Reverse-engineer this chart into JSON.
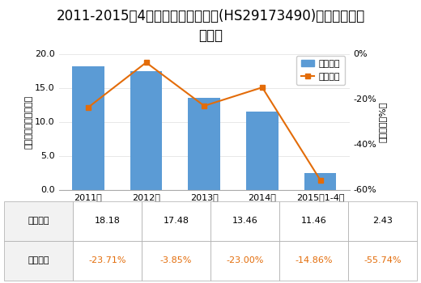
{
  "title": "2011-2015年4月其他邻苯二甲酸酯(HS29173490)进口总额及增\n速统计",
  "categories": [
    "2011年",
    "2012年",
    "2013年",
    "2014年",
    "2015年1-4月"
  ],
  "bar_values": [
    18.18,
    17.48,
    13.46,
    11.46,
    2.43
  ],
  "line_values": [
    -23.71,
    -3.85,
    -23.0,
    -14.86,
    -55.74
  ],
  "bar_color": "#5B9BD5",
  "line_color": "#E36C09",
  "ylabel_left": "进口金额（百万美元）",
  "ylabel_right": "同比增长（%）",
  "ylim_left": [
    0,
    20.0
  ],
  "ylim_right": [
    -60,
    0
  ],
  "yticks_left": [
    0.0,
    5.0,
    10.0,
    15.0,
    20.0
  ],
  "yticks_right": [
    -60,
    -40,
    -20,
    0
  ],
  "ytick_labels_right": [
    "-60%",
    "-40%",
    "-20%",
    "0%"
  ],
  "legend_bar": "进口金额",
  "legend_line": "同比增长",
  "table_row1_label": "进口金额",
  "table_row2_label": "同比增长",
  "table_row1_values": [
    "18.18",
    "17.48",
    "13.46",
    "11.46",
    "2.43"
  ],
  "table_row2_values": [
    "-23.71%",
    "-3.85%",
    "-23.00%",
    "-14.86%",
    "-55.74%"
  ],
  "table_row2_colors": [
    "#000000",
    "#E36C09",
    "#E36C09",
    "#E36C09",
    "#E36C09",
    "#E36C09"
  ],
  "bg_color": "#FFFFFF",
  "plot_bg_color": "#FFFFFF",
  "title_fontsize": 12,
  "axis_fontsize": 8,
  "table_fontsize": 8
}
